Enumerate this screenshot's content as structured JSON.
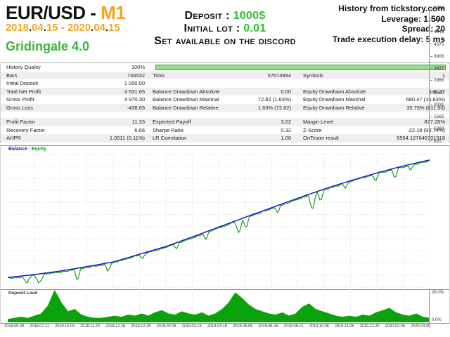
{
  "header": {
    "title_symbol": "EUR/USD -",
    "title_timeframe": "M1",
    "date_parts": [
      "2018",
      ".",
      "04",
      ".",
      "15",
      " - ",
      "2020",
      ".",
      "04",
      ".",
      "15"
    ],
    "ea_name": "Gridingale 4.0",
    "center": {
      "deposit_label": "Deposit : ",
      "deposit_value": "1000$",
      "lot_label": "Initial lot : ",
      "lot_value": "0.01",
      "discord_note": "Set available on the discord"
    },
    "right_lines": [
      "History from tickstory.com",
      "Leverage: 1:500",
      "Spread: 20",
      "Trade execution delay: 5 ms"
    ]
  },
  "stats": {
    "block1": [
      {
        "cells": [
          "History Quality",
          "100%",
          "",
          "",
          "",
          ""
        ],
        "quality_bar": true
      },
      {
        "cells": [
          "Bars",
          "746532",
          "Ticks",
          "57674894",
          "Symbols",
          "1"
        ]
      },
      {
        "cells": [
          "Initial Deposit",
          "1 000.00",
          "",
          "",
          "",
          ""
        ]
      },
      {
        "cells": [
          "Total Net Profit",
          "4 531.65",
          "Balance Drawdown Absolute",
          "0.00",
          "Equity Drawdown Absolute",
          "140.27"
        ]
      },
      {
        "cells": [
          "Gross Profit",
          "4 970.30",
          "Balance Drawdown Maximal",
          "72.82 (1.63%)",
          "Equity Drawdown Maximal",
          "680.47 (16.63%)"
        ]
      },
      {
        "cells": [
          "Gross Loss",
          "-438.65",
          "Balance Drawdown Relative",
          "1.63% (72.82)",
          "Equity Drawdown Relative",
          "35.75% (611.90)"
        ]
      }
    ],
    "block2": [
      {
        "cells": [
          "Profit Factor",
          "11.33",
          "Expected Payoff",
          "3.02",
          "Margin Level",
          "877.28%"
        ]
      },
      {
        "cells": [
          "Recovery Factor",
          "6.66",
          "Sharpe Ratio",
          "0.32",
          "Z-Score",
          "-22.18 (99.74%)"
        ]
      },
      {
        "cells": [
          "AHPR",
          "1.0011 (0.11%)",
          "LR Correlation",
          "1.00",
          "OnTester result",
          "5554.127645701918"
        ]
      }
    ]
  },
  "chart_data": {
    "type": "line",
    "title": "Balance / Equity",
    "legend": {
      "balance": "Balance",
      "separator": " / ",
      "equity": "Equity"
    },
    "y_axis": {
      "side": "right",
      "labels": [
        5781,
        5312,
        4843,
        4375,
        3906,
        3437,
        2968,
        2500,
        2031,
        1562,
        1093,
        625
      ]
    },
    "x_axis": {
      "labels": [
        "2018.05.03",
        "2018.07.11",
        "2018.10.04",
        "2018.11.20",
        "2018.12.18",
        "2018.12.28",
        "2019.02.06",
        "2019.03.15",
        "2019.04.18",
        "2019.06.05",
        "2019.06.26",
        "2019.08.12",
        "2019.10.08",
        "2019.11.06",
        "2019.12.20",
        "2020.02.05",
        "2020.03.09"
      ]
    },
    "grid": {
      "vertical_divisions": 16,
      "style": "dotted"
    },
    "series": [
      {
        "name": "Balance",
        "color": "#1c1cc0",
        "values": [
          1000,
          1110,
          1250,
          1420,
          1600,
          1900,
          2200,
          2570,
          2950,
          3330,
          3700,
          4070,
          4425,
          4750,
          5050,
          5320,
          5554
        ]
      },
      {
        "name": "Equity",
        "color": "#16a116",
        "jitter": 55,
        "note": "balance minus drawdown spikes",
        "dips": [
          [
            0.045,
            280,
            0.01
          ],
          [
            0.075,
            330,
            0.012
          ],
          [
            0.165,
            470,
            0.008
          ],
          [
            0.238,
            320,
            0.008
          ],
          [
            0.32,
            170,
            0.008
          ],
          [
            0.4,
            200,
            0.007
          ],
          [
            0.47,
            240,
            0.008
          ],
          [
            0.548,
            500,
            0.01
          ],
          [
            0.565,
            430,
            0.008
          ],
          [
            0.64,
            260,
            0.007
          ],
          [
            0.722,
            680,
            0.009
          ],
          [
            0.742,
            420,
            0.008
          ],
          [
            0.8,
            200,
            0.006
          ],
          [
            0.872,
            300,
            0.007
          ],
          [
            0.918,
            380,
            0.008
          ],
          [
            0.955,
            220,
            0.006
          ]
        ]
      }
    ],
    "deposit_load": {
      "title": "Deposit Load",
      "type": "area",
      "color": "#0ba30b",
      "y_max_label": "28.0%",
      "y_min_label": "0.0%",
      "max_percent": 28,
      "values": [
        2,
        3,
        4,
        3,
        5,
        7,
        14,
        28,
        17,
        9,
        11,
        6,
        4,
        3,
        3,
        4,
        5,
        4,
        6,
        5,
        7,
        5,
        8,
        10,
        7,
        6,
        9,
        7,
        6,
        8,
        5,
        7,
        11,
        17,
        26,
        21,
        15,
        11,
        9,
        7,
        6,
        8,
        5,
        7,
        13,
        16,
        11,
        9,
        7,
        5,
        4,
        5,
        4,
        6,
        5,
        8,
        10,
        12,
        8,
        6,
        5,
        7,
        4,
        3
      ]
    }
  }
}
